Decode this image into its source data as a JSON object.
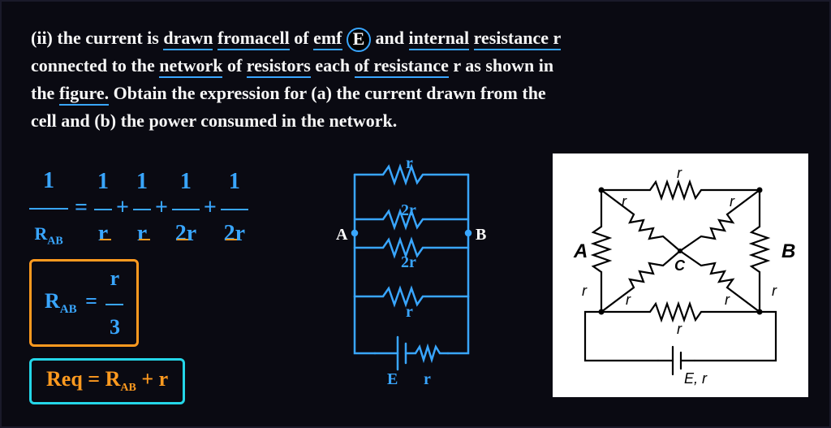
{
  "question": {
    "prefix": "(ii)",
    "parts": [
      {
        "t": "the current is",
        "u": false
      },
      {
        "t": "drawn",
        "u": true
      },
      {
        "t": "fromacell",
        "u": true
      },
      {
        "t": "of",
        "u": false
      },
      {
        "t": "emf",
        "u": true
      }
    ],
    "emf_letter": "E",
    "after_emf": [
      {
        "t": "and",
        "u": false
      },
      {
        "t": "internal",
        "u": true
      },
      {
        "t": "resistance r",
        "u": true
      }
    ],
    "line2": [
      {
        "t": "connected to the",
        "u": false
      },
      {
        "t": "network",
        "u": true
      },
      {
        "t": "of",
        "u": false
      },
      {
        "t": "resistors",
        "u": true
      },
      {
        "t": "each",
        "u": false
      },
      {
        "t": "of resistance",
        "u": true
      },
      {
        "t": "r as shown in",
        "u": false
      }
    ],
    "line3": [
      {
        "t": "the",
        "u": false
      },
      {
        "t": "figure.",
        "u": true
      },
      {
        "t": "Obtain the expression for (a) the current drawn from the",
        "u": false
      }
    ],
    "line4": "cell and (b) the power consumed in the network."
  },
  "formula1": {
    "lhs_num": "1",
    "lhs_den": "R",
    "lhs_den_sub": "AB",
    "eq": "=",
    "terms": [
      {
        "num": "1",
        "den": "r"
      },
      {
        "num": "1",
        "den": "r"
      },
      {
        "num": "1",
        "den": "2r"
      },
      {
        "num": "1",
        "den": "2r"
      }
    ],
    "color": "#39a6ff",
    "under_color": "#ff9a1f"
  },
  "formula2": {
    "text_l": "R",
    "sub": "AB",
    "eq": "=",
    "num": "r",
    "den": "3",
    "color": "#39a6ff",
    "box_color": "#ff9a1f"
  },
  "formula3": {
    "text": "Req = R",
    "sub": "AB",
    "plus": " + r",
    "color": "#ff9a1f",
    "box_color": "#24d6e8"
  },
  "sketch": {
    "stroke": "#39a6ff",
    "labels": {
      "A": "A",
      "B": "B",
      "top": "r",
      "mid1": "2r",
      "mid2": "2r",
      "bot": "r",
      "cell_e": "E",
      "cell_r": "r"
    }
  },
  "circuit": {
    "bg": "#ffffff",
    "stroke": "#000000",
    "label_A": "A",
    "label_B": "B",
    "label_C": "C",
    "label_r": "r",
    "label_Er": "E, r"
  }
}
